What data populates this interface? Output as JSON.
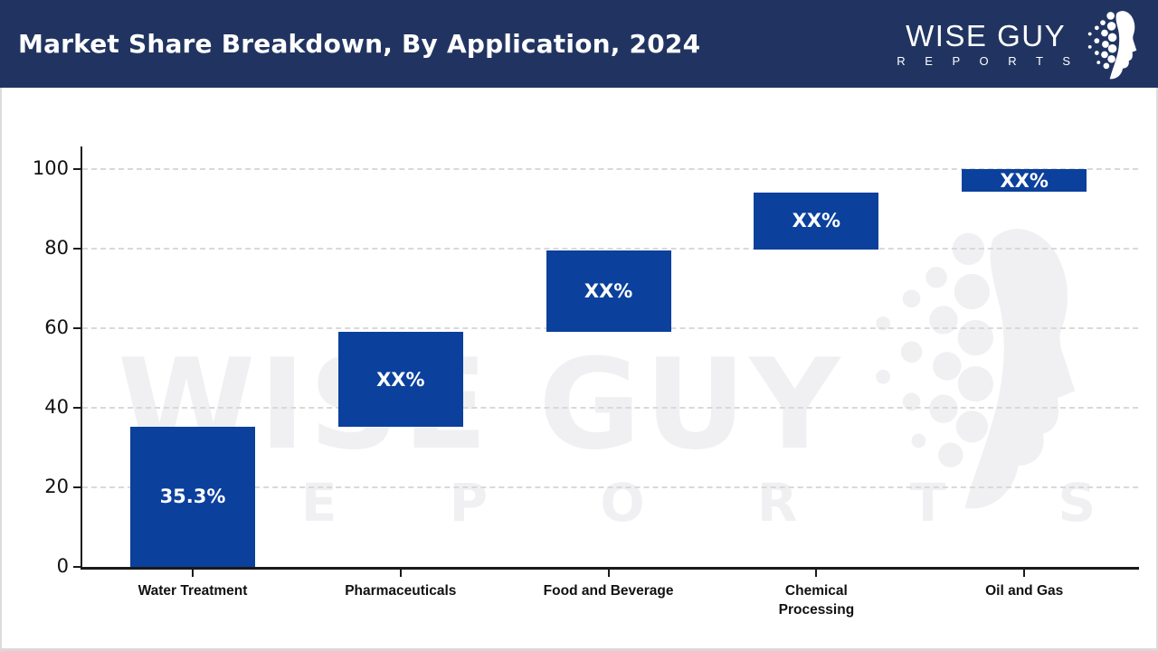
{
  "header": {
    "title": "Market Share Breakdown, By Application, 2024",
    "logo": {
      "name": "WISE GUY",
      "sub": "R E P O R T S"
    }
  },
  "watermark": {
    "name": "WISE GUY",
    "sub": "R E P O R T S"
  },
  "chart_data": {
    "type": "bar",
    "variant": "waterfall",
    "title": "Market Share Breakdown, By Application, 2024",
    "categories": [
      "Water Treatment",
      "Pharmaceuticals",
      "Food and Beverage",
      "Chemical Processing",
      "Oil and Gas"
    ],
    "segments": [
      {
        "category": "Water Treatment",
        "label": "35.3%",
        "start": 0,
        "end": 35.3,
        "value": 35.3
      },
      {
        "category": "Pharmaceuticals",
        "label": "XX%",
        "start": 35.3,
        "end": 59.0,
        "value_approx": 23.7
      },
      {
        "category": "Food and Beverage",
        "label": "XX%",
        "start": 59.0,
        "end": 79.5,
        "value_approx": 20.5
      },
      {
        "category": "Chemical Processing",
        "label": "XX%",
        "start": 79.8,
        "end": 94.1,
        "value_approx": 14.3
      },
      {
        "category": "Oil and Gas",
        "label": "XX%",
        "start": 94.3,
        "end": 100.0,
        "value_approx": 5.7
      }
    ],
    "y_ticks": [
      0,
      20,
      40,
      60,
      80,
      100
    ],
    "ylim": [
      0,
      105
    ],
    "xlabel": "",
    "ylabel": "",
    "grid": "horizontal-dashed",
    "legend": false,
    "bar_color": "#0b409c",
    "colors": {
      "header_bg": "#213461",
      "grid": "#d9d9d9",
      "axis": "#1a1a1a",
      "bar_label_text": "#ffffff",
      "tick_label_text": "#111111",
      "watermark": "#f0f0f3"
    }
  }
}
